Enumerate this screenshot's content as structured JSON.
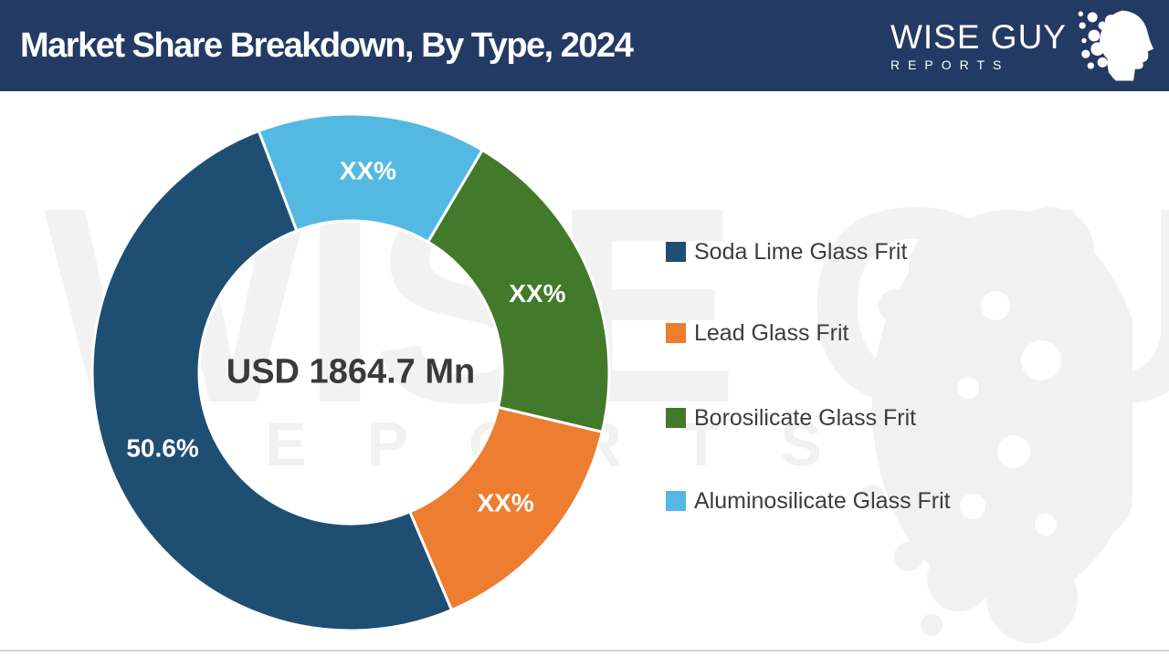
{
  "header": {
    "title": "Market Share Breakdown, By Type, 2024",
    "background_color": "#233a64",
    "logo": {
      "wordmark": "WISE GUY",
      "sub": "REPORTS",
      "icon": "head-silhouette-dots-icon"
    }
  },
  "chart_data": {
    "type": "donut",
    "title": "Market Share Breakdown, By Type, 2024",
    "center_label": "USD 1864.7 Mn",
    "start_angle_deg": 157,
    "clockwise_order": [
      0,
      3,
      2,
      1
    ],
    "legend_position": "right",
    "segments": [
      {
        "label": "Soda Lime Glass Frit",
        "display_value": "50.6%",
        "percent": 50.6,
        "color": "#1f4e73"
      },
      {
        "label": "Lead Glass Frit",
        "display_value": "XX%",
        "percent": 14.9,
        "color": "#ed7d31"
      },
      {
        "label": "Borosilicate Glass Frit",
        "display_value": "XX%",
        "percent": 20.2,
        "color": "#43792a"
      },
      {
        "label": "Aluminosilicate Glass Frit",
        "display_value": "XX%",
        "percent": 14.3,
        "color": "#54b9e2"
      }
    ]
  },
  "watermark": {
    "line1": "WISE GUY",
    "line2": "REPORTS"
  }
}
